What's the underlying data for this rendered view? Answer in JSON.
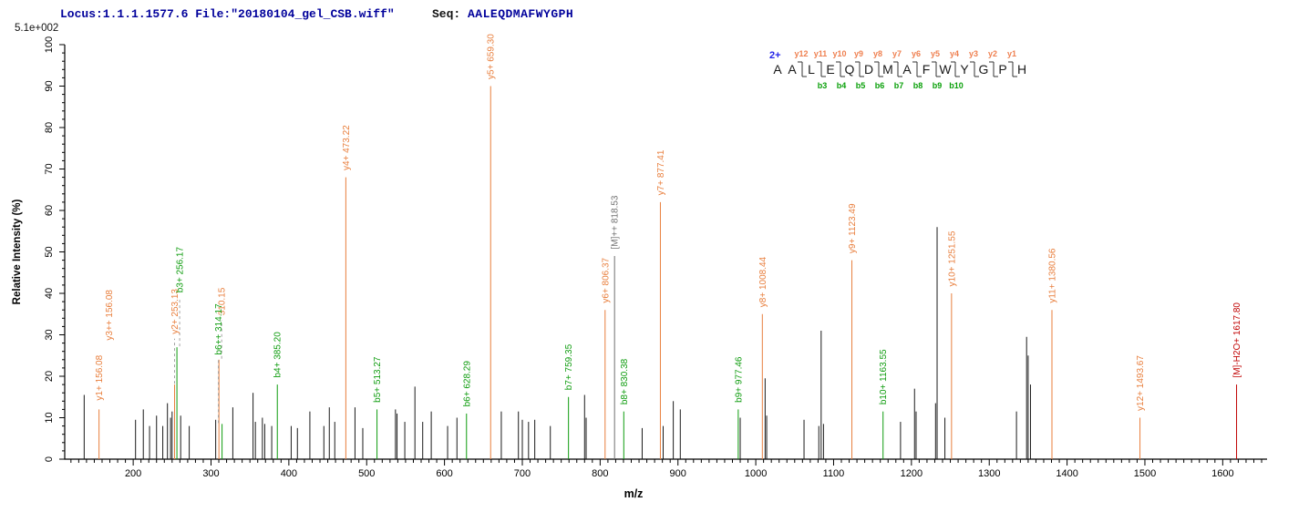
{
  "header": {
    "locus_file": "Locus:1.1.1.1577.6 File:\"20180104_gel_CSB.wiff\"",
    "seq_label": "Seq:",
    "sequence": "AALEQDMAFWYGPH",
    "abs_intensity": "5.1e+002"
  },
  "peptide_panel": {
    "charge": "2+",
    "residues": [
      "A",
      "A",
      "L",
      "E",
      "Q",
      "D",
      "M",
      "A",
      "F",
      "W",
      "Y",
      "G",
      "P",
      "H"
    ],
    "dividers": [
      {
        "after": 1,
        "y": "y12",
        "b": null
      },
      {
        "after": 2,
        "y": "y11",
        "b": "b3"
      },
      {
        "after": 3,
        "y": "y10",
        "b": "b4"
      },
      {
        "after": 4,
        "y": "y9",
        "b": "b5"
      },
      {
        "after": 5,
        "y": "y8",
        "b": "b6"
      },
      {
        "after": 6,
        "y": "y7",
        "b": "b7"
      },
      {
        "after": 7,
        "y": "y6",
        "b": "b8"
      },
      {
        "after": 8,
        "y": "y5",
        "b": "b9"
      },
      {
        "after": 9,
        "y": "y4",
        "b": "b10"
      },
      {
        "after": 10,
        "y": "y3",
        "b": null
      },
      {
        "after": 11,
        "y": "y2",
        "b": null
      },
      {
        "after": 12,
        "y": "y1",
        "b": null
      }
    ]
  },
  "colors": {
    "black": "#1A1A1A",
    "orange": "#E87E3C",
    "green": "#0E9C0E",
    "gray": "#707070",
    "darkred": "#C00000",
    "navy": "#00009B",
    "leader": "#999999"
  },
  "chart_data": {
    "type": "bar",
    "subtype": "ms2-stick-spectrum",
    "title": "",
    "xlabel": "m/z",
    "ylabel": "Relative  Intensity (%)",
    "xlim": [
      112,
      1657
    ],
    "ylim": [
      0,
      100
    ],
    "x_major_tick_step": 100,
    "x_minor_tick_step": 10,
    "x_tick_labels": [
      200,
      300,
      400,
      500,
      600,
      700,
      800,
      900,
      1000,
      1100,
      1200,
      1300,
      1400,
      1500,
      1600
    ],
    "y_major_tick_step": 10,
    "y_minor_tick_step": 2,
    "grid": false,
    "peaks": [
      {
        "mz": 137,
        "i": 15.5,
        "c": "black"
      },
      {
        "mz": 156.08,
        "i": 12,
        "c": "orange",
        "labels": [
          {
            "t": "y1+ 156.08",
            "dx": 0,
            "s": 13.5
          },
          {
            "t": "y3++ 156.08",
            "dx": 11,
            "s": 28
          }
        ]
      },
      {
        "mz": 203,
        "i": 9.5,
        "c": "black"
      },
      {
        "mz": 213,
        "i": 12,
        "c": "black"
      },
      {
        "mz": 221,
        "i": 8,
        "c": "black"
      },
      {
        "mz": 230,
        "i": 10.5,
        "c": "black"
      },
      {
        "mz": 238,
        "i": 8,
        "c": "black"
      },
      {
        "mz": 244,
        "i": 13.5,
        "c": "black"
      },
      {
        "mz": 248,
        "i": 10,
        "c": "black"
      },
      {
        "mz": 250,
        "i": 11.5,
        "c": "black"
      },
      {
        "mz": 253.13,
        "i": 18,
        "c": "orange",
        "labels": [
          {
            "t": "y2+ 253.13",
            "dx": 0,
            "s": 29.5,
            "leader": true
          }
        ]
      },
      {
        "mz": 256.17,
        "i": 27,
        "c": "green",
        "labels": [
          {
            "t": "b3+ 256.17",
            "dx": 3,
            "s": 39.5,
            "leader": true
          }
        ]
      },
      {
        "mz": 261,
        "i": 10.5,
        "c": "black"
      },
      {
        "mz": 272,
        "i": 8,
        "c": "black"
      },
      {
        "mz": 306,
        "i": 9.5,
        "c": "black"
      },
      {
        "mz": 310.15,
        "i": 24,
        "c": "orange",
        "labels": [
          {
            "t": "310.15",
            "dx": 3,
            "s": 34,
            "leader": true
          }
        ]
      },
      {
        "mz": 314.17,
        "i": 8.5,
        "c": "green",
        "labels": [
          {
            "t": "b6++ 314.17",
            "dx": -4,
            "s": 24.5,
            "leader": true
          }
        ]
      },
      {
        "mz": 328,
        "i": 12.5,
        "c": "black"
      },
      {
        "mz": 354,
        "i": 16,
        "c": "black"
      },
      {
        "mz": 357,
        "i": 9,
        "c": "black"
      },
      {
        "mz": 366,
        "i": 10,
        "c": "black"
      },
      {
        "mz": 369,
        "i": 8.5,
        "c": "black"
      },
      {
        "mz": 378,
        "i": 8,
        "c": "black"
      },
      {
        "mz": 385.2,
        "i": 18,
        "c": "green",
        "labels": [
          {
            "t": "b4+ 385.20",
            "dx": 0,
            "s": 19
          }
        ]
      },
      {
        "mz": 403,
        "i": 8,
        "c": "black"
      },
      {
        "mz": 411,
        "i": 7.5,
        "c": "black"
      },
      {
        "mz": 427,
        "i": 11.5,
        "c": "black"
      },
      {
        "mz": 445,
        "i": 8,
        "c": "black"
      },
      {
        "mz": 452,
        "i": 12.5,
        "c": "black"
      },
      {
        "mz": 459,
        "i": 9,
        "c": "black"
      },
      {
        "mz": 473.22,
        "i": 68,
        "c": "orange",
        "labels": [
          {
            "t": "y4+ 473.22",
            "dx": 0,
            "s": 69
          }
        ]
      },
      {
        "mz": 485,
        "i": 12.5,
        "c": "black"
      },
      {
        "mz": 495,
        "i": 7.5,
        "c": "black"
      },
      {
        "mz": 513.27,
        "i": 12,
        "c": "green",
        "labels": [
          {
            "t": "b5+ 513.27",
            "dx": 0,
            "s": 13
          }
        ]
      },
      {
        "mz": 537,
        "i": 12,
        "c": "black"
      },
      {
        "mz": 539,
        "i": 11,
        "c": "black"
      },
      {
        "mz": 549,
        "i": 9,
        "c": "black"
      },
      {
        "mz": 562,
        "i": 17.5,
        "c": "black"
      },
      {
        "mz": 572,
        "i": 9,
        "c": "black"
      },
      {
        "mz": 583,
        "i": 11.5,
        "c": "black"
      },
      {
        "mz": 604,
        "i": 8,
        "c": "black"
      },
      {
        "mz": 616,
        "i": 10,
        "c": "black"
      },
      {
        "mz": 628.29,
        "i": 11,
        "c": "green",
        "labels": [
          {
            "t": "b6+ 628.29",
            "dx": 0,
            "s": 12
          }
        ]
      },
      {
        "mz": 659.3,
        "i": 90,
        "c": "orange",
        "labels": [
          {
            "t": "y5+ 659.30",
            "dx": 0,
            "s": 91
          }
        ]
      },
      {
        "mz": 673,
        "i": 11.5,
        "c": "black"
      },
      {
        "mz": 695,
        "i": 11.5,
        "c": "black"
      },
      {
        "mz": 700,
        "i": 9.5,
        "c": "black"
      },
      {
        "mz": 708,
        "i": 9,
        "c": "black"
      },
      {
        "mz": 716,
        "i": 9.5,
        "c": "black"
      },
      {
        "mz": 736,
        "i": 8,
        "c": "black"
      },
      {
        "mz": 759.35,
        "i": 15,
        "c": "green",
        "labels": [
          {
            "t": "b7+ 759.35",
            "dx": 0,
            "s": 16
          }
        ]
      },
      {
        "mz": 780,
        "i": 15.5,
        "c": "black"
      },
      {
        "mz": 782,
        "i": 10,
        "c": "black"
      },
      {
        "mz": 806.37,
        "i": 36,
        "c": "orange",
        "labels": [
          {
            "t": "y6+ 806.37",
            "dx": 0,
            "s": 37
          }
        ]
      },
      {
        "mz": 818.53,
        "i": 49,
        "c": "gray",
        "labels": [
          {
            "t": "[M]++ 818.53",
            "dx": 0,
            "s": 50
          }
        ]
      },
      {
        "mz": 830.38,
        "i": 11.5,
        "c": "green",
        "labels": [
          {
            "t": "b8+ 830.38",
            "dx": 0,
            "s": 12.5
          }
        ]
      },
      {
        "mz": 854,
        "i": 7.5,
        "c": "black"
      },
      {
        "mz": 877.41,
        "i": 62,
        "c": "orange",
        "labels": [
          {
            "t": "y7+ 877.41",
            "dx": 0,
            "s": 63
          }
        ]
      },
      {
        "mz": 881,
        "i": 8,
        "c": "black"
      },
      {
        "mz": 894,
        "i": 14,
        "c": "black"
      },
      {
        "mz": 903,
        "i": 12,
        "c": "black"
      },
      {
        "mz": 977.46,
        "i": 12,
        "c": "green",
        "labels": [
          {
            "t": "b9+ 977.46",
            "dx": 0,
            "s": 13
          }
        ]
      },
      {
        "mz": 980,
        "i": 10,
        "c": "black"
      },
      {
        "mz": 1008.44,
        "i": 35,
        "c": "orange",
        "labels": [
          {
            "t": "y8+ 1008.44",
            "dx": 0,
            "s": 36
          }
        ]
      },
      {
        "mz": 1012,
        "i": 19.5,
        "c": "black"
      },
      {
        "mz": 1014,
        "i": 10.5,
        "c": "black"
      },
      {
        "mz": 1062,
        "i": 9.5,
        "c": "black"
      },
      {
        "mz": 1081,
        "i": 8,
        "c": "black"
      },
      {
        "mz": 1084,
        "i": 31,
        "c": "black"
      },
      {
        "mz": 1087,
        "i": 8.5,
        "c": "black"
      },
      {
        "mz": 1123.49,
        "i": 48,
        "c": "orange",
        "labels": [
          {
            "t": "y9+ 1123.49",
            "dx": 0,
            "s": 49
          }
        ]
      },
      {
        "mz": 1163.55,
        "i": 11.5,
        "c": "green",
        "labels": [
          {
            "t": "b10+ 1163.55",
            "dx": 0,
            "s": 12.5
          }
        ]
      },
      {
        "mz": 1186,
        "i": 9,
        "c": "black"
      },
      {
        "mz": 1204,
        "i": 17,
        "c": "black"
      },
      {
        "mz": 1206,
        "i": 11.5,
        "c": "black"
      },
      {
        "mz": 1231,
        "i": 13.5,
        "c": "black"
      },
      {
        "mz": 1233,
        "i": 56,
        "c": "black"
      },
      {
        "mz": 1243,
        "i": 10,
        "c": "black"
      },
      {
        "mz": 1251.55,
        "i": 40,
        "c": "orange",
        "labels": [
          {
            "t": "y10+ 1251.55",
            "dx": 0,
            "s": 41
          }
        ]
      },
      {
        "mz": 1335,
        "i": 11.5,
        "c": "black"
      },
      {
        "mz": 1348,
        "i": 29.5,
        "c": "black"
      },
      {
        "mz": 1350,
        "i": 25,
        "c": "black"
      },
      {
        "mz": 1353,
        "i": 18,
        "c": "black"
      },
      {
        "mz": 1380.56,
        "i": 36,
        "c": "orange",
        "labels": [
          {
            "t": "y11+ 1380.56",
            "dx": 0,
            "s": 37
          }
        ]
      },
      {
        "mz": 1493.67,
        "i": 10,
        "c": "orange",
        "labels": [
          {
            "t": "y12+ 1493.67",
            "dx": 0,
            "s": 11
          }
        ]
      },
      {
        "mz": 1617.8,
        "i": 18,
        "c": "darkred",
        "labels": [
          {
            "t": "[M]-H2O+ 1617.80",
            "dx": 0,
            "s": 19
          }
        ]
      }
    ]
  }
}
